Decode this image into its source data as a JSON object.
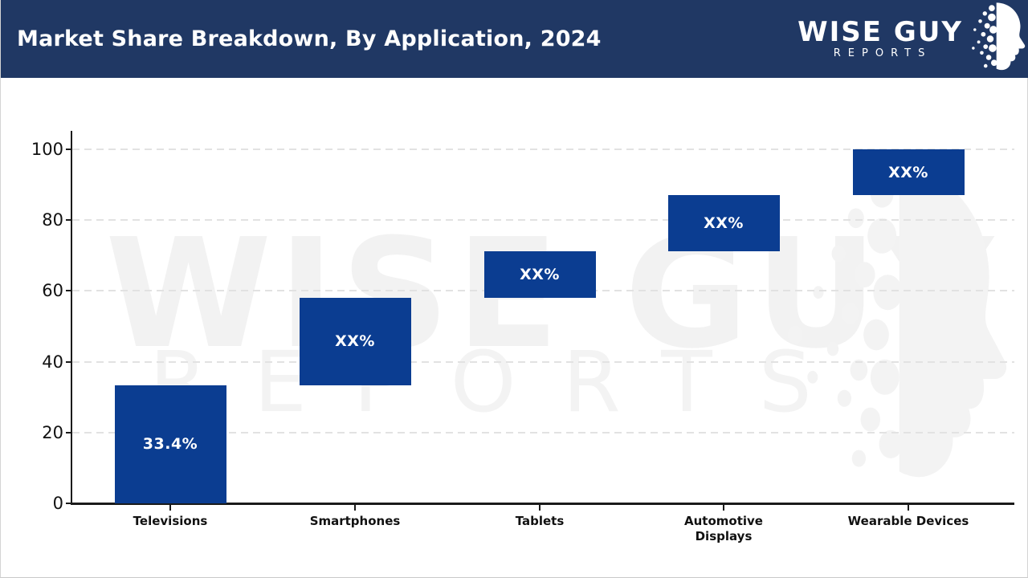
{
  "header": {
    "title": "Market Share Breakdown, By Application, 2024",
    "bg_color": "#203864",
    "logo": {
      "line1": "WISE GUY",
      "line2": "REPORTS"
    }
  },
  "watermark": {
    "line1": "WISE GUY",
    "line2": "REPORTS"
  },
  "chart_data": {
    "type": "bar",
    "subtype": "waterfall",
    "title": "Market Share Breakdown, By Application, 2024",
    "categories": [
      "Televisions",
      "Smartphones",
      "Tablets",
      "Automotive Displays",
      "Wearable Devices"
    ],
    "segments": [
      {
        "category": "Televisions",
        "category_lines": [
          "Televisions"
        ],
        "start": 0,
        "end": 33.4,
        "value_label": "33.4%"
      },
      {
        "category": "Smartphones",
        "category_lines": [
          "Smartphones"
        ],
        "start": 33.4,
        "end": 58,
        "value_label": "XX%"
      },
      {
        "category": "Tablets",
        "category_lines": [
          "Tablets"
        ],
        "start": 58,
        "end": 71.2,
        "value_label": "XX%"
      },
      {
        "category": "Automotive Displays",
        "category_lines": [
          "Automotive",
          "Displays"
        ],
        "start": 71.2,
        "end": 87,
        "value_label": "XX%"
      },
      {
        "category": "Wearable Devices",
        "category_lines": [
          "Wearable Devices"
        ],
        "start": 87,
        "end": 100,
        "value_label": "XX%"
      }
    ],
    "yticks": [
      0,
      20,
      40,
      60,
      80,
      100
    ],
    "ylim": [
      0,
      105
    ],
    "xlabel": "",
    "ylabel": "",
    "grid": "horizontal-dashed",
    "legend": "none",
    "bar_color": "#0b3d91",
    "value_label_color": "#ffffff",
    "axis_color": "#1a1a1a"
  }
}
